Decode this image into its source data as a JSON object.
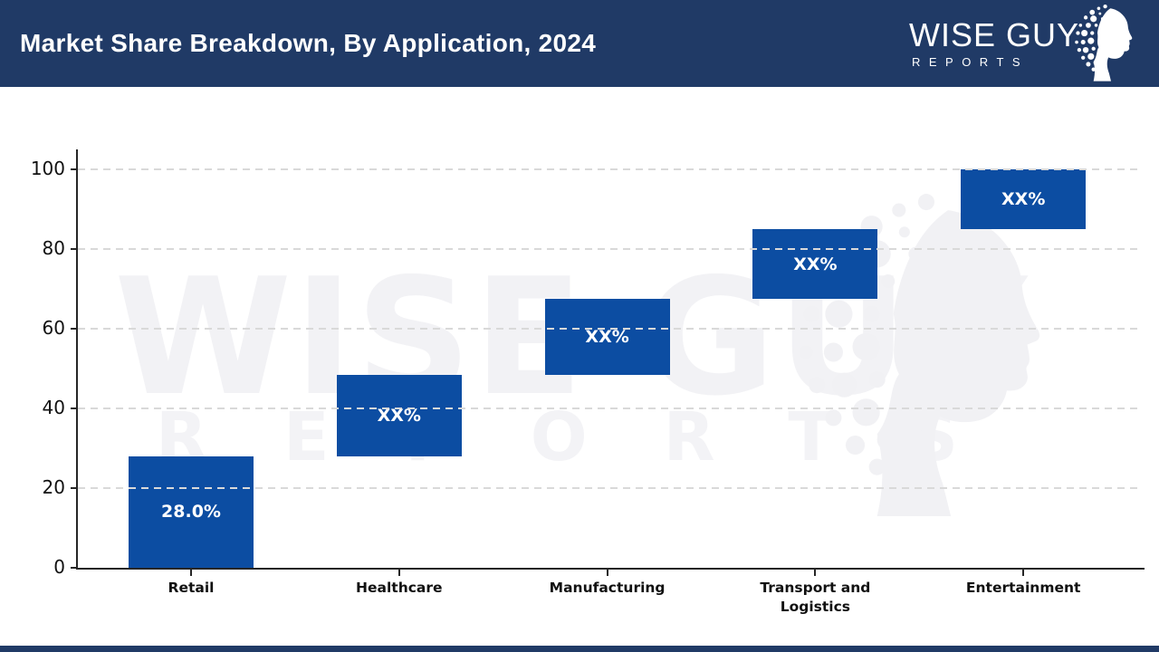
{
  "header": {
    "title": "Market Share Breakdown, By Application, 2024",
    "logo_line1": "WISE GUY",
    "logo_line2": "REPORTS"
  },
  "watermark": {
    "line1": "WISE GUY",
    "line2": "REPORTS"
  },
  "chart_data": {
    "type": "bar",
    "subtype": "floating-waterfall-segments",
    "title": "Market Share Breakdown, By Application, 2024",
    "xlabel": "",
    "ylabel": "",
    "categories": [
      "Retail",
      "Healthcare",
      "Manufacturing",
      "Transport and Logistics",
      "Entertainment"
    ],
    "segments": [
      {
        "category": "Retail",
        "start": 0,
        "end": 28,
        "label": "28.0%"
      },
      {
        "category": "Healthcare",
        "start": 28,
        "end": 48.5,
        "label": "XX%"
      },
      {
        "category": "Manufacturing",
        "start": 48.5,
        "end": 67.5,
        "label": "XX%"
      },
      {
        "category": "Transport and Logistics",
        "start": 67.5,
        "end": 85,
        "label": "XX%"
      },
      {
        "category": "Entertainment",
        "start": 85,
        "end": 100,
        "label": "XX%"
      }
    ],
    "ylim": [
      0,
      105
    ],
    "yticks": [
      0,
      20,
      40,
      60,
      80,
      100
    ],
    "grid": "horizontal-dashed",
    "legend": "none",
    "colors": {
      "bar": "#0C4DA2",
      "bar_label": "#FFFFFF",
      "grid": "#D9D9D9",
      "axis": "#262626",
      "header_bg": "#203A66",
      "watermark": "#F2F2F5"
    }
  }
}
